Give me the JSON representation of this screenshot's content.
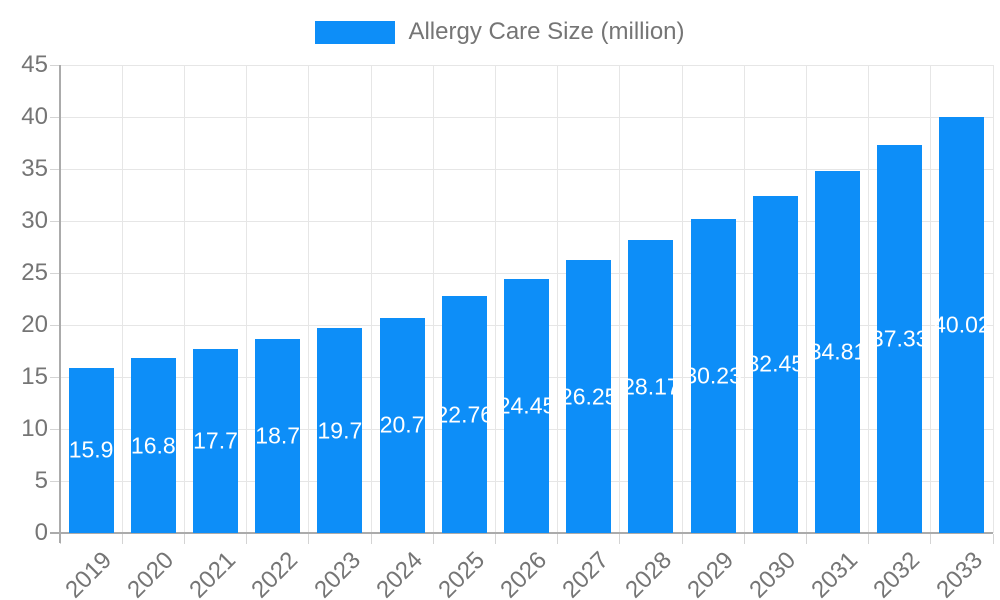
{
  "legend": {
    "label": "Allergy Care Size (million)"
  },
  "colors": {
    "bar": "#0d8ef8",
    "grid": "#e6e6e6",
    "axis": "#ababab",
    "tick": "#d4d4d4",
    "text": "#757575",
    "bar_label_text": "#ffffff",
    "background": "#ffffff"
  },
  "chart_data": {
    "type": "bar",
    "title": "",
    "xlabel": "",
    "ylabel": "",
    "legend_position": "top-center",
    "grid": true,
    "x_tick_rotation": -45,
    "categories": [
      "2019",
      "2020",
      "2021",
      "2022",
      "2023",
      "2024",
      "2025",
      "2026",
      "2027",
      "2028",
      "2029",
      "2030",
      "2031",
      "2032",
      "2033"
    ],
    "series": [
      {
        "name": "Allergy Care Size (million)",
        "color": "#0d8ef8",
        "values": [
          15.9,
          16.8,
          17.7,
          18.7,
          19.7,
          20.7,
          22.76,
          24.45,
          26.25,
          28.17,
          30.23,
          32.45,
          34.81,
          37.33,
          40.02
        ]
      }
    ],
    "bar_labels": [
      "15.9",
      "16.8",
      "17.7",
      "18.7",
      "19.7",
      "20.7",
      "22.76",
      "24.45",
      "26.25",
      "28.17",
      "30.23",
      "32.45",
      "34.81",
      "37.33",
      "40.02"
    ],
    "ylim": [
      0,
      45
    ],
    "ytick_step": 5,
    "yticks": [
      0,
      5,
      10,
      15,
      20,
      25,
      30,
      35,
      40,
      45
    ]
  }
}
